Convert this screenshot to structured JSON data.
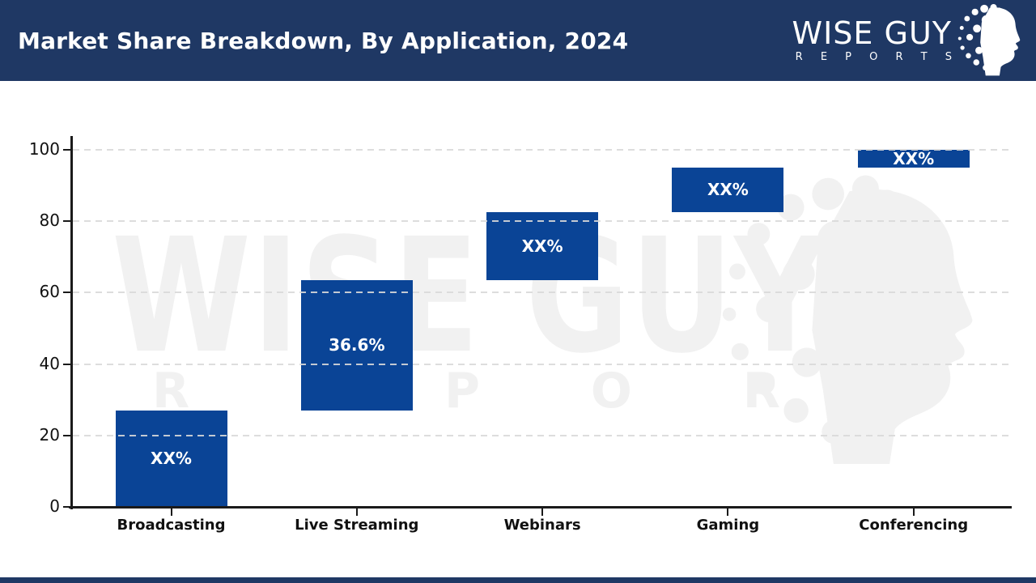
{
  "header": {
    "title": "Market Share Breakdown, By Application, 2024",
    "logo": {
      "line1": "WISE GUY",
      "line2": "R E P O R T S"
    }
  },
  "watermark": {
    "line1": "WISE GUY",
    "line2": "R E P O R T S"
  },
  "colors": {
    "header_bg": "#1F3864",
    "footer_bg": "#1F3864",
    "bar": "#0A4496",
    "bar_label": "#FFFFFF",
    "gridline": "#D9D9D9",
    "axis": "#1A1A1A",
    "tick_label": "#111111",
    "watermark": "#F1F1F1"
  },
  "chart_data": {
    "type": "bar",
    "subtype": "waterfall",
    "title": "Market Share Breakdown, By Application, 2024",
    "categories": [
      "Broadcasting",
      "Live Streaming",
      "Webinars",
      "Gaming",
      "Conferencing"
    ],
    "bars": [
      {
        "category": "Broadcasting",
        "start": 0,
        "end": 27,
        "label": "XX%"
      },
      {
        "category": "Live Streaming",
        "start": 27,
        "end": 63.6,
        "label": "36.6%"
      },
      {
        "category": "Webinars",
        "start": 63.6,
        "end": 82.6,
        "label": "XX%"
      },
      {
        "category": "Gaming",
        "start": 82.6,
        "end": 95,
        "label": "XX%"
      },
      {
        "category": "Conferencing",
        "start": 95,
        "end": 100,
        "label": "XX%"
      }
    ],
    "yticks": [
      0,
      20,
      40,
      60,
      80,
      100
    ],
    "ylim": [
      0,
      104
    ],
    "grid": "dashed-horizontal",
    "legend": "none",
    "bar_color": "#0A4496"
  }
}
